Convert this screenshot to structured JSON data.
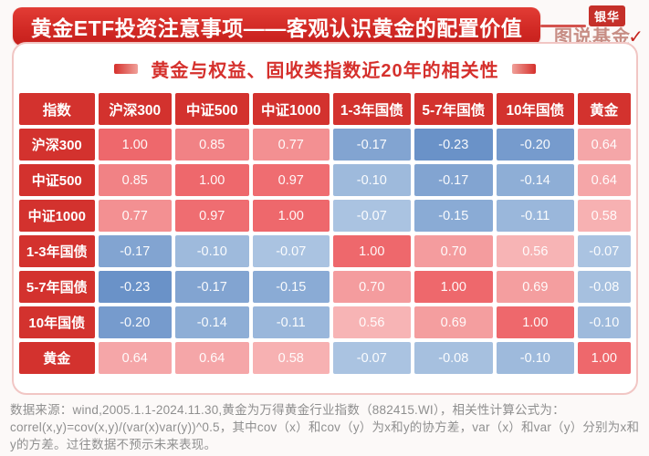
{
  "page": {
    "background": "#fcf9f8",
    "accent_red": "#d3322e"
  },
  "header": {
    "banner_title": "黄金ETF投资注意事项——客观认识黄金的配置价值",
    "logo": {
      "brand": "银华",
      "series": "图说基金",
      "check_icon": "✓"
    }
  },
  "chart_data": {
    "type": "heatmap",
    "title": "黄金与权益、固收类指数近20年的相关性",
    "corner_label": "指数",
    "categories": [
      "沪深300",
      "中证500",
      "中证1000",
      "1-3年国债",
      "5-7年国债",
      "10年国债",
      "黄金"
    ],
    "matrix": [
      [
        1.0,
        0.85,
        0.77,
        -0.17,
        -0.23,
        -0.2,
        0.64
      ],
      [
        0.85,
        1.0,
        0.97,
        -0.1,
        -0.17,
        -0.14,
        0.64
      ],
      [
        0.77,
        0.97,
        1.0,
        -0.07,
        -0.15,
        -0.11,
        0.58
      ],
      [
        -0.17,
        -0.1,
        -0.07,
        1.0,
        0.7,
        0.56,
        -0.07
      ],
      [
        -0.23,
        -0.17,
        -0.15,
        0.7,
        1.0,
        0.69,
        -0.08
      ],
      [
        -0.2,
        -0.14,
        -0.11,
        0.56,
        0.69,
        1.0,
        -0.1
      ],
      [
        0.64,
        0.64,
        0.58,
        -0.07,
        -0.08,
        -0.1,
        1.0
      ]
    ],
    "value_format": "2-decimals",
    "header_color": "#d3322e",
    "positive_color_range": [
      "#f7b4b5",
      "#ee686c"
    ],
    "negative_color_range": [
      "#aac3e1",
      "#6a92c8"
    ],
    "legend_position": "none",
    "grid": "white-gaps"
  },
  "footer": {
    "text": "数据来源：wind,2005.1.1-2024.11.30,黄金为万得黄金行业指数（882415.WI），相关性计算公式为：correl(x,y)=cov(x,y)/(var(x)var(y))^0.5，其中cov（x）和cov（y）为x和y的协方差，var（x）和var（y）分别为x和y的方差。过往数据不预示未来表现。"
  }
}
